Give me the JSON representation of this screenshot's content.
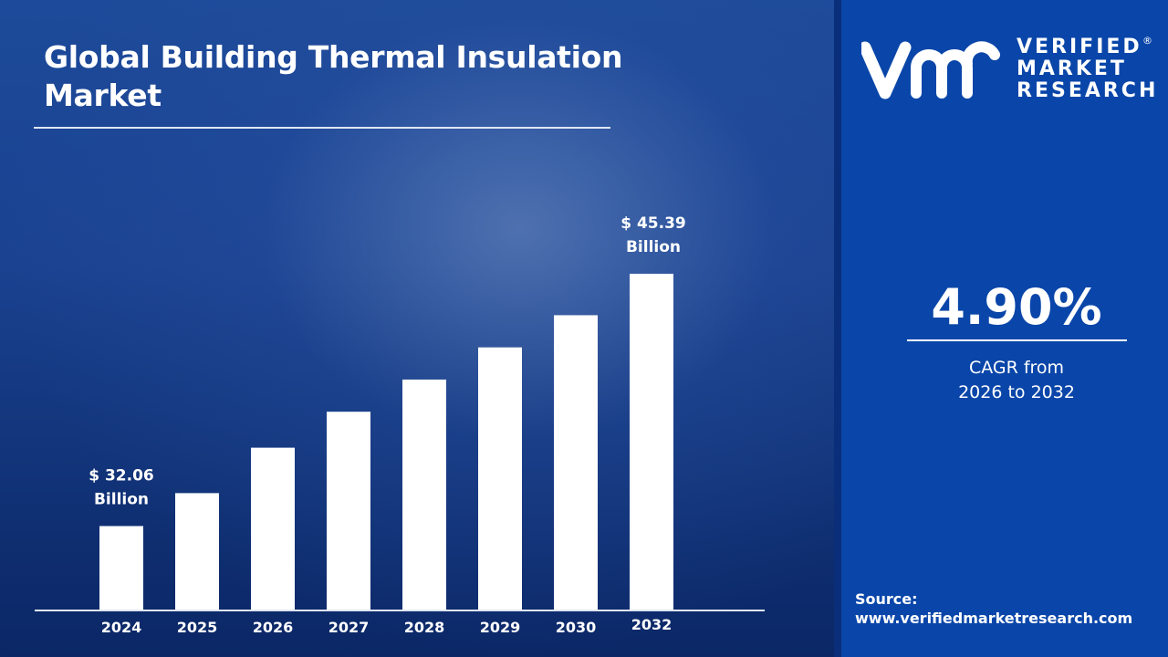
{
  "title": "Global Building Thermal Insulation Market",
  "brand": {
    "line1": "VERIFIED",
    "line2": "MARKET",
    "line3": "RESEARCH",
    "registered": "®"
  },
  "cagr": {
    "value": "4.90%",
    "label_line1": "CAGR from",
    "label_line2": "2026 to 2032"
  },
  "source": {
    "label": "Source:",
    "url": "www.verifiedmarketresearch.com"
  },
  "colors": {
    "panel": "#0a46a9",
    "bar": "#ffffff",
    "background": "#1a4290"
  },
  "chart_data": {
    "type": "bar",
    "title": "Global Building Thermal Insulation Market",
    "categories": [
      "2024",
      "2025",
      "2026",
      "2027",
      "2028",
      "2029",
      "2030",
      "2032"
    ],
    "values": [
      32.06,
      33.8,
      36.2,
      38.1,
      39.8,
      41.5,
      43.2,
      45.39
    ],
    "unit": "USD Billion",
    "data_labels": [
      {
        "index": 0,
        "line1": "$ 32.06",
        "line2": "Billion"
      },
      {
        "index": 7,
        "line1": "$  45.39",
        "line2": "Billion"
      }
    ],
    "xlabel": "",
    "ylabel": "",
    "ylim": [
      27.6,
      46
    ],
    "grid": false,
    "legend": "none"
  }
}
